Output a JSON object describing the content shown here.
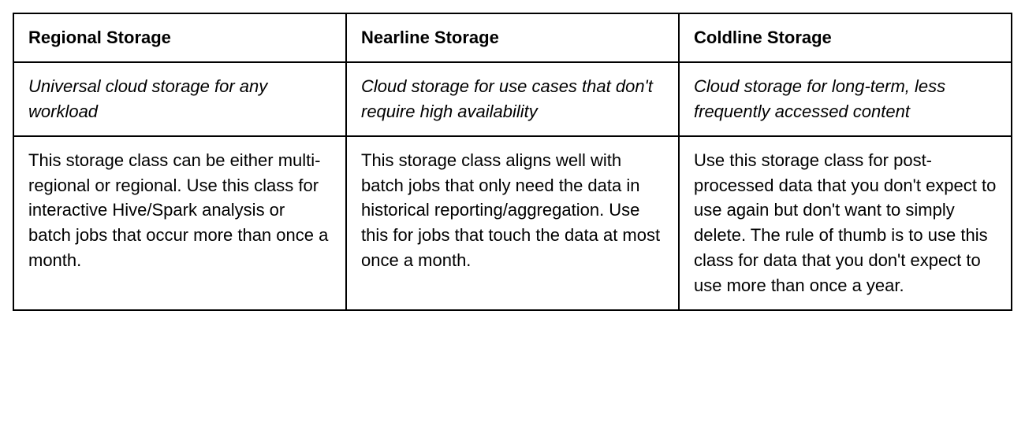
{
  "table": {
    "type": "table",
    "columns": 3,
    "rows": 3,
    "border_color": "#000000",
    "border_width": 2,
    "background_color": "#ffffff",
    "text_color": "#000000",
    "font_family": "Arial",
    "header_font_weight": "bold",
    "subtitle_font_style": "italic",
    "body_fontsize": 22,
    "cell_padding": "14px 18px",
    "col_widths_pct": [
      33.33,
      33.33,
      33.33
    ],
    "headers": [
      "Regional Storage",
      "Nearline Storage",
      "Coldline Storage"
    ],
    "subtitles": [
      "Universal cloud storage for any workload",
      "Cloud storage for use cases that don't require high availability",
      "Cloud storage for long-term, less frequently accessed content"
    ],
    "descriptions": [
      "This storage class can be either multi-regional or regional. Use this class for interactive Hive/Spark analysis or batch jobs that occur more than once a month.",
      "This storage class aligns well with batch jobs that only need the data in historical reporting/aggregation. Use this for jobs that touch the data at most once a month.",
      "Use this storage class for post-processed data that you don't expect to use again but don't want to simply delete. The rule of thumb is to use this class for data that you don't expect to use more than once a year."
    ]
  }
}
